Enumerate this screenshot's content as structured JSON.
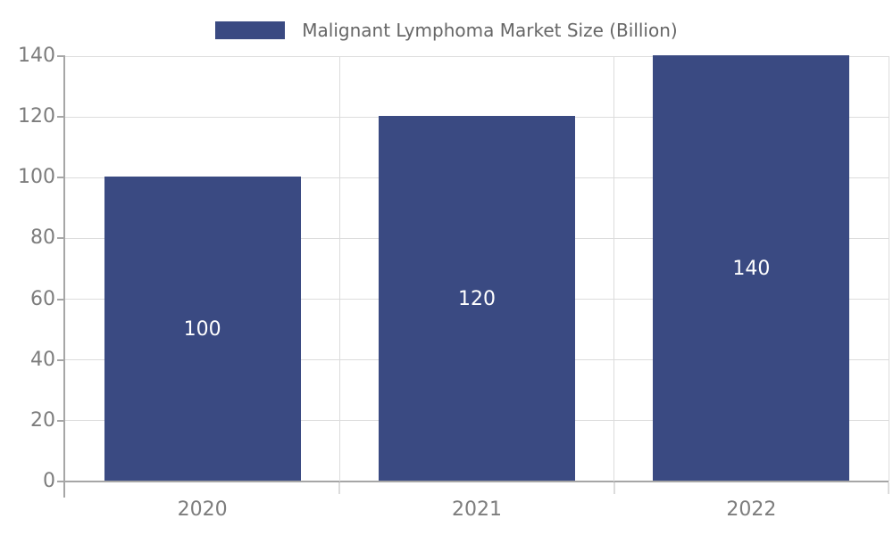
{
  "chart_data": {
    "type": "bar",
    "title": "",
    "legend_label": "Malignant Lymphoma Market Size (Billion)",
    "legend_position": "top-center",
    "series_name": "Malignant Lymphoma Market Size (Billion)",
    "categories": [
      "2020",
      "2021",
      "2022"
    ],
    "values": [
      100,
      120,
      140
    ],
    "data_labels": [
      "100",
      "120",
      "140"
    ],
    "yticks": [
      0,
      20,
      40,
      60,
      80,
      100,
      120,
      140
    ],
    "ylim": [
      0,
      140
    ],
    "xlabel": "",
    "ylabel": "",
    "grid": true,
    "colors": {
      "bar": "#3A4A82",
      "data_label": "#FFFFFF",
      "axis_text": "#7D7D7D",
      "legend_text": "#666666",
      "grid_line": "#DCDCDC",
      "axis_line": "#A6A6A6",
      "background": "#FFFFFF"
    }
  }
}
